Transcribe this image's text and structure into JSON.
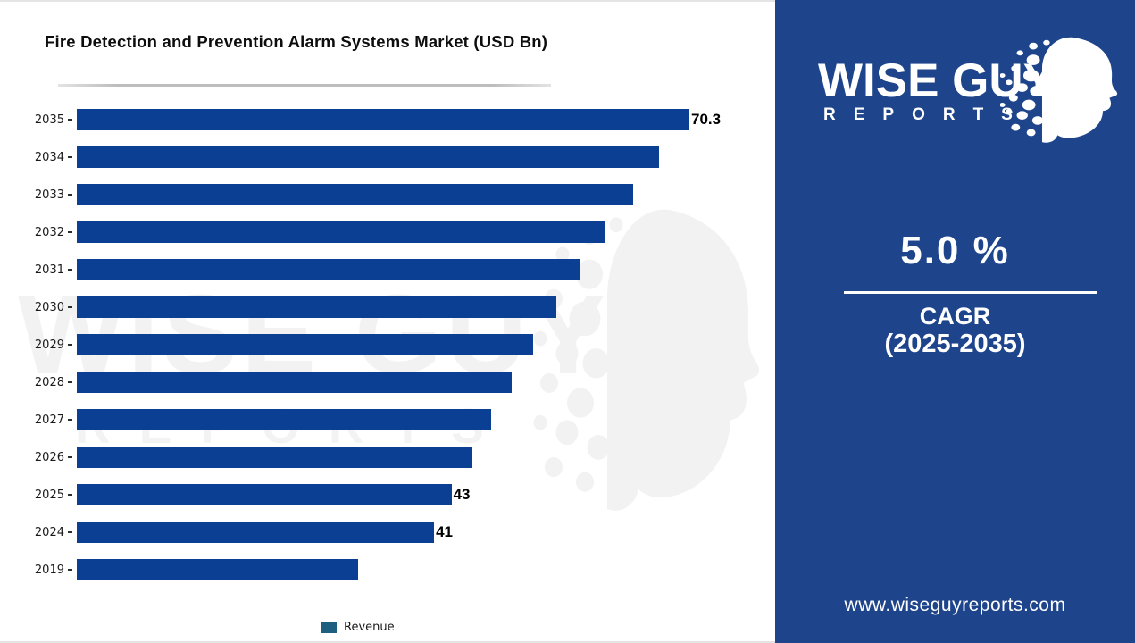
{
  "chart_data": {
    "type": "bar",
    "orientation": "horizontal",
    "title": "Fire Detection and Prevention Alarm Systems Market (USD Bn)",
    "units": "USD Bn",
    "categories": [
      "2035",
      "2034",
      "2033",
      "2032",
      "2031",
      "2030",
      "2029",
      "2028",
      "2027",
      "2026",
      "2025",
      "2024",
      "2019"
    ],
    "values": [
      70.3,
      66.8,
      63.8,
      60.7,
      57.7,
      55.0,
      52.4,
      49.9,
      47.5,
      45.3,
      43,
      41,
      32.3
    ],
    "data_labels": [
      "70.3",
      "",
      "",
      "",
      "",
      "",
      "",
      "",
      "",
      "",
      "43",
      "41",
      ""
    ],
    "xlim": [
      0,
      72
    ],
    "grid": false,
    "legend": [
      "Revenue"
    ],
    "legend_position": "bottom-center"
  },
  "colors": {
    "bar": "#0b3f94",
    "legend_swatch": "#1e5f80",
    "sidebar_bg": "#1e448c",
    "watermark": "#f2f2f2"
  },
  "watermark": {
    "line1": "WISE GUY",
    "line2": "REPORTS"
  },
  "sidebar": {
    "logo": {
      "line1": "WISE GUY",
      "line2": "REPORTS"
    },
    "cagr_value": "5.0 %",
    "cagr_label": "CAGR",
    "cagr_range": "(2025-2035)",
    "website": "www.wiseguyreports.com"
  }
}
